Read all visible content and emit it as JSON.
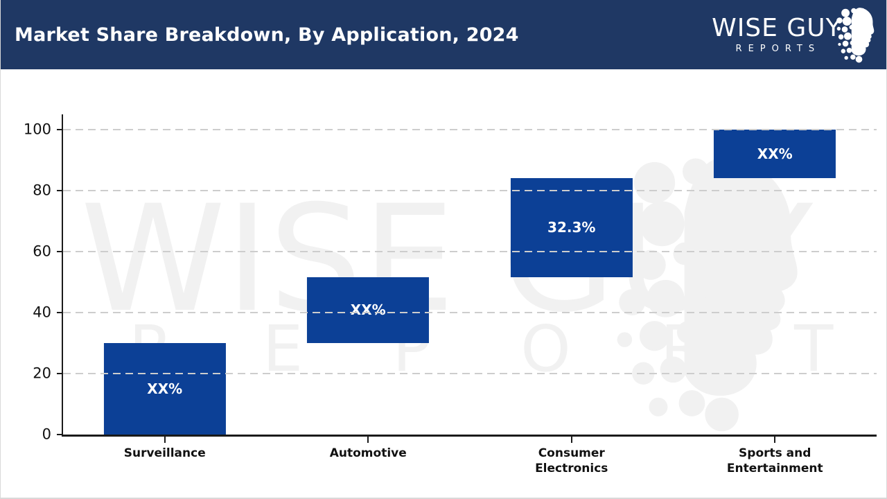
{
  "header": {
    "title": "Market Share Breakdown, By Application, 2024",
    "logo": {
      "line1": "WISE GUY",
      "line2": "REPORTS"
    }
  },
  "watermark": {
    "line1": "WISE GUY",
    "line2": "R E P O R T S"
  },
  "colors": {
    "header_bg": "#1f3864",
    "bar": "#0c4096",
    "grid": "#cdcdcd",
    "axis": "#1a1a1a",
    "bar_label": "#ffffff",
    "watermark": "#f1f1f1"
  },
  "chart_data": {
    "type": "bar",
    "subtype": "floating-waterfall",
    "title": "Market Share Breakdown, By Application, 2024",
    "categories": [
      "Surveillance",
      "Automotive",
      "Consumer\nElectronics",
      "Sports and\nEntertainment"
    ],
    "segments": [
      {
        "category": "Surveillance",
        "start": 0,
        "end": 30,
        "label": "XX%"
      },
      {
        "category": "Automotive",
        "start": 30,
        "end": 51.7,
        "label": "XX%"
      },
      {
        "category": "Consumer Electronics",
        "start": 51.7,
        "end": 84,
        "label": "32.3%"
      },
      {
        "category": "Sports and Entertainment",
        "start": 84,
        "end": 100,
        "label": "XX%"
      }
    ],
    "yticks": [
      0,
      20,
      40,
      60,
      80,
      100
    ],
    "ylim": [
      0,
      105
    ],
    "xlabel": "",
    "ylabel": "",
    "grid": "horizontal-dashed",
    "legend": "none",
    "bar_color": "#0c4096"
  }
}
